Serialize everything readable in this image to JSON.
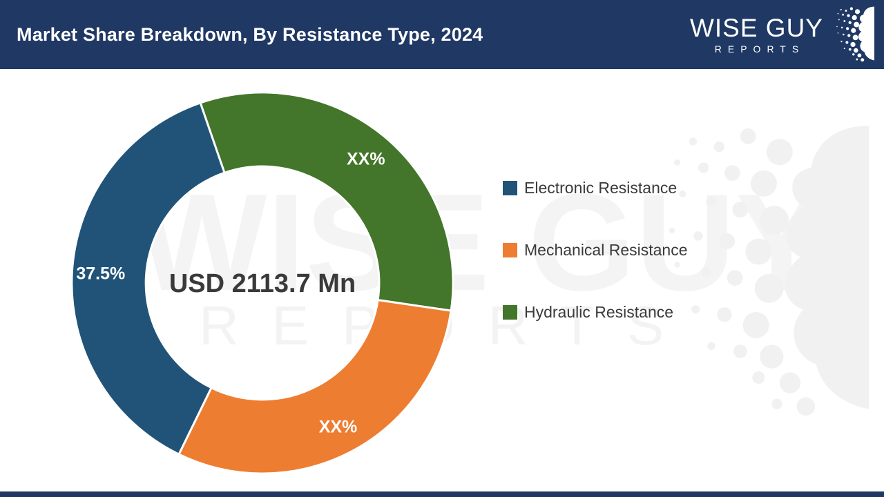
{
  "header": {
    "title": "Market Share Breakdown, By Resistance Type, 2024",
    "bg_color": "#1f3864",
    "logo": {
      "line1": "WISE GUY",
      "line2": "REPORTS"
    }
  },
  "watermark": {
    "line1": "WISE GUY",
    "line2": "REPORTS"
  },
  "chart_data": {
    "type": "pie",
    "donut": true,
    "title": "Market Share Breakdown, By Resistance Type, 2024",
    "center_label": "USD 2113.7 Mn",
    "start_angle_deg": -109,
    "inner_radius_ratio": 0.612,
    "label_radius_ratio": 0.85,
    "legend_position": "right",
    "segments": [
      {
        "name": "Hydraulic Resistance",
        "display_label": "XX%",
        "pct": 32.6,
        "color": "#43752a"
      },
      {
        "name": "Mechanical Resistance",
        "display_label": "XX%",
        "pct": 29.9,
        "color": "#ed7d31"
      },
      {
        "name": "Electronic Resistance",
        "display_label": "37.5%",
        "pct": 37.5,
        "color": "#205377"
      }
    ],
    "legend": [
      {
        "label": "Electronic Resistance",
        "color": "#205377"
      },
      {
        "label": "Mechanical Resistance",
        "color": "#ed7d31"
      },
      {
        "label": "Hydraulic Resistance",
        "color": "#43752a"
      }
    ]
  },
  "footer": {
    "bg_color": "#1f3864"
  }
}
